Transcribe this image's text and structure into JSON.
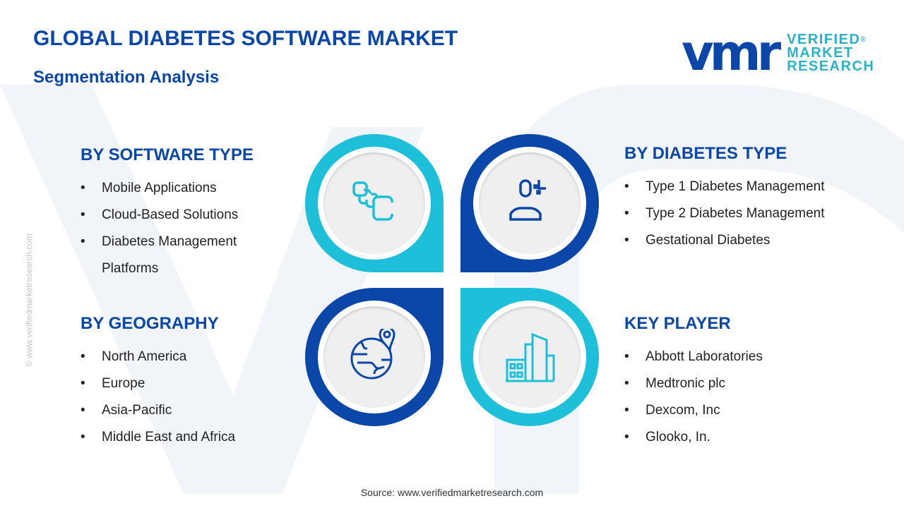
{
  "title": "GLOBAL DIABETES SOFTWARE MARKET",
  "subtitle": "Segmentation Analysis",
  "side_text": "© www.verifiedmarketresearch.com",
  "logo": {
    "mark": "vmr",
    "line1": "VERIFIED",
    "line2": "MARKET",
    "line3": "RESEARCH",
    "reg": "®"
  },
  "colors": {
    "dark_blue": "#0b47a8",
    "cyan": "#1ebfd8"
  },
  "sections": [
    {
      "heading": "BY SOFTWARE TYPE",
      "icon": "apps-stack-icon",
      "items": [
        "Mobile Applications",
        "Cloud-Based Solutions",
        "Diabetes Management Platforms"
      ]
    },
    {
      "heading": "BY DIABETES TYPE",
      "icon": "person-icon",
      "items": [
        "Type 1 Diabetes Management",
        "Type 2 Diabetes Management",
        "Gestational Diabetes"
      ]
    },
    {
      "heading": "BY GEOGRAPHY",
      "icon": "globe-pin-icon",
      "items": [
        "North America",
        "Europe",
        "Asia-Pacific",
        "Middle East and Africa"
      ]
    },
    {
      "heading": "KEY PLAYER",
      "icon": "buildings-icon",
      "items": [
        "Abbott Laboratories",
        "Medtronic plc",
        "Dexcom, Inc",
        "Glooko, In."
      ]
    }
  ],
  "source": "Source: www.verifiedmarketresearch.com"
}
